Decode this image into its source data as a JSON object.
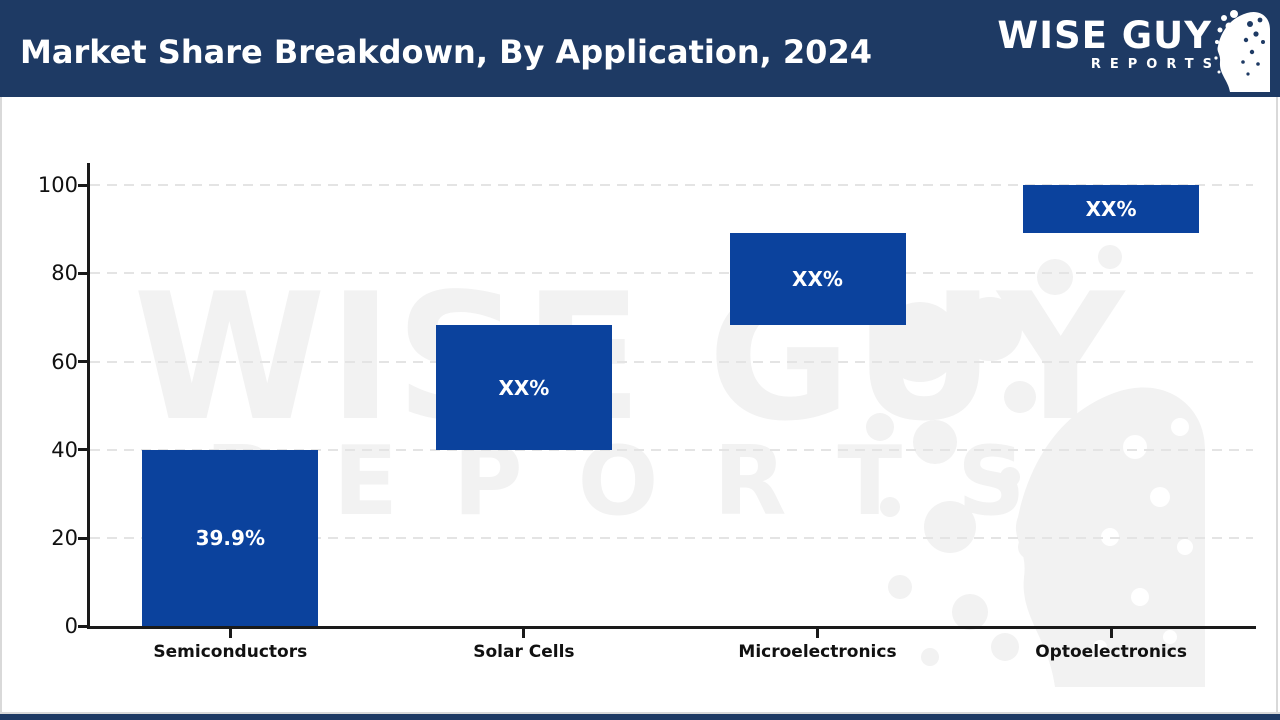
{
  "header": {
    "title": "Market Share Breakdown, By Application, 2024",
    "logo": {
      "word": "WISE GUY",
      "sub": "REPORTS"
    }
  },
  "watermark": {
    "line1": "WISE GUY",
    "line2": "REPORTS"
  },
  "chart_data": {
    "type": "bar",
    "subtype": "waterfall-floating-bars",
    "title": "Market Share Breakdown, By Application, 2024",
    "categories": [
      "Semiconductors",
      "Solar Cells",
      "Microelectronics",
      "Optoelectronics"
    ],
    "bars": [
      {
        "category": "Semiconductors",
        "start": 0,
        "end": 39.9,
        "label": "39.9%"
      },
      {
        "category": "Solar Cells",
        "start": 39.9,
        "end": 68.2,
        "label": "XX%"
      },
      {
        "category": "Microelectronics",
        "start": 68.2,
        "end": 89.1,
        "label": "XX%"
      },
      {
        "category": "Optoelectronics",
        "start": 89.1,
        "end": 100,
        "label": "XX%"
      }
    ],
    "yticks": [
      0,
      20,
      40,
      60,
      80,
      100
    ],
    "ylim": [
      0,
      105
    ],
    "xlabel": "",
    "ylabel": "",
    "legend": "none",
    "grid": "horizontal-dashed",
    "bar_color": "#0b429d"
  },
  "colors": {
    "header_bg": "#1e3a64",
    "bar": "#0b429d",
    "grid": "#e4e4e4",
    "axis": "#1a1a1a",
    "watermark": "#f2f2f2",
    "border": "#d9d9d9"
  }
}
